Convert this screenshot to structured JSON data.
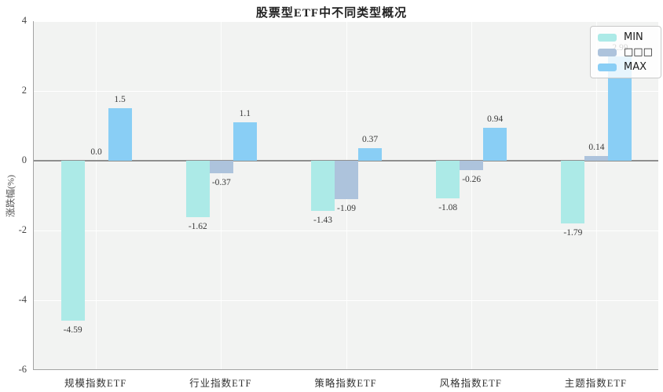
{
  "chart_data": {
    "type": "bar",
    "title": "股票型ETF中不同类型概况",
    "xlabel": "",
    "ylabel": "涨跌幅(%)",
    "categories": [
      "规模指数ETF",
      "行业指数ETF",
      "策略指数ETF",
      "风格指数ETF",
      "主题指数ETF"
    ],
    "series": [
      {
        "name": "MIN",
        "color": "#aceae7",
        "values": [
          -4.59,
          -1.62,
          -1.43,
          -1.08,
          -1.79
        ],
        "labels": [
          "-4.59",
          "-1.62",
          "-1.43",
          "-1.08",
          "-1.79"
        ]
      },
      {
        "name": "□□□",
        "color": "#adc3dc",
        "values": [
          0.0,
          -0.37,
          -1.09,
          -0.26,
          0.14
        ],
        "labels": [
          "0.0",
          "-0.37",
          "-1.09",
          "-0.26",
          "0.14"
        ]
      },
      {
        "name": "MAX",
        "color": "#89cef5",
        "values": [
          1.5,
          1.1,
          0.37,
          0.94,
          2.99
        ],
        "labels": [
          "1.5",
          "1.1",
          "0.37",
          "0.94",
          "2.99"
        ]
      }
    ],
    "ylim": [
      -6,
      4
    ],
    "yticks": [
      "4",
      "2",
      "0",
      "-2",
      "-4",
      "-6"
    ],
    "ytick_values": [
      4,
      2,
      0,
      -2,
      -4,
      -6
    ],
    "grid": true,
    "legend_position": "top-right",
    "plot_background": "#f2f3f2",
    "zero_line_color": "#8f8f8f"
  }
}
